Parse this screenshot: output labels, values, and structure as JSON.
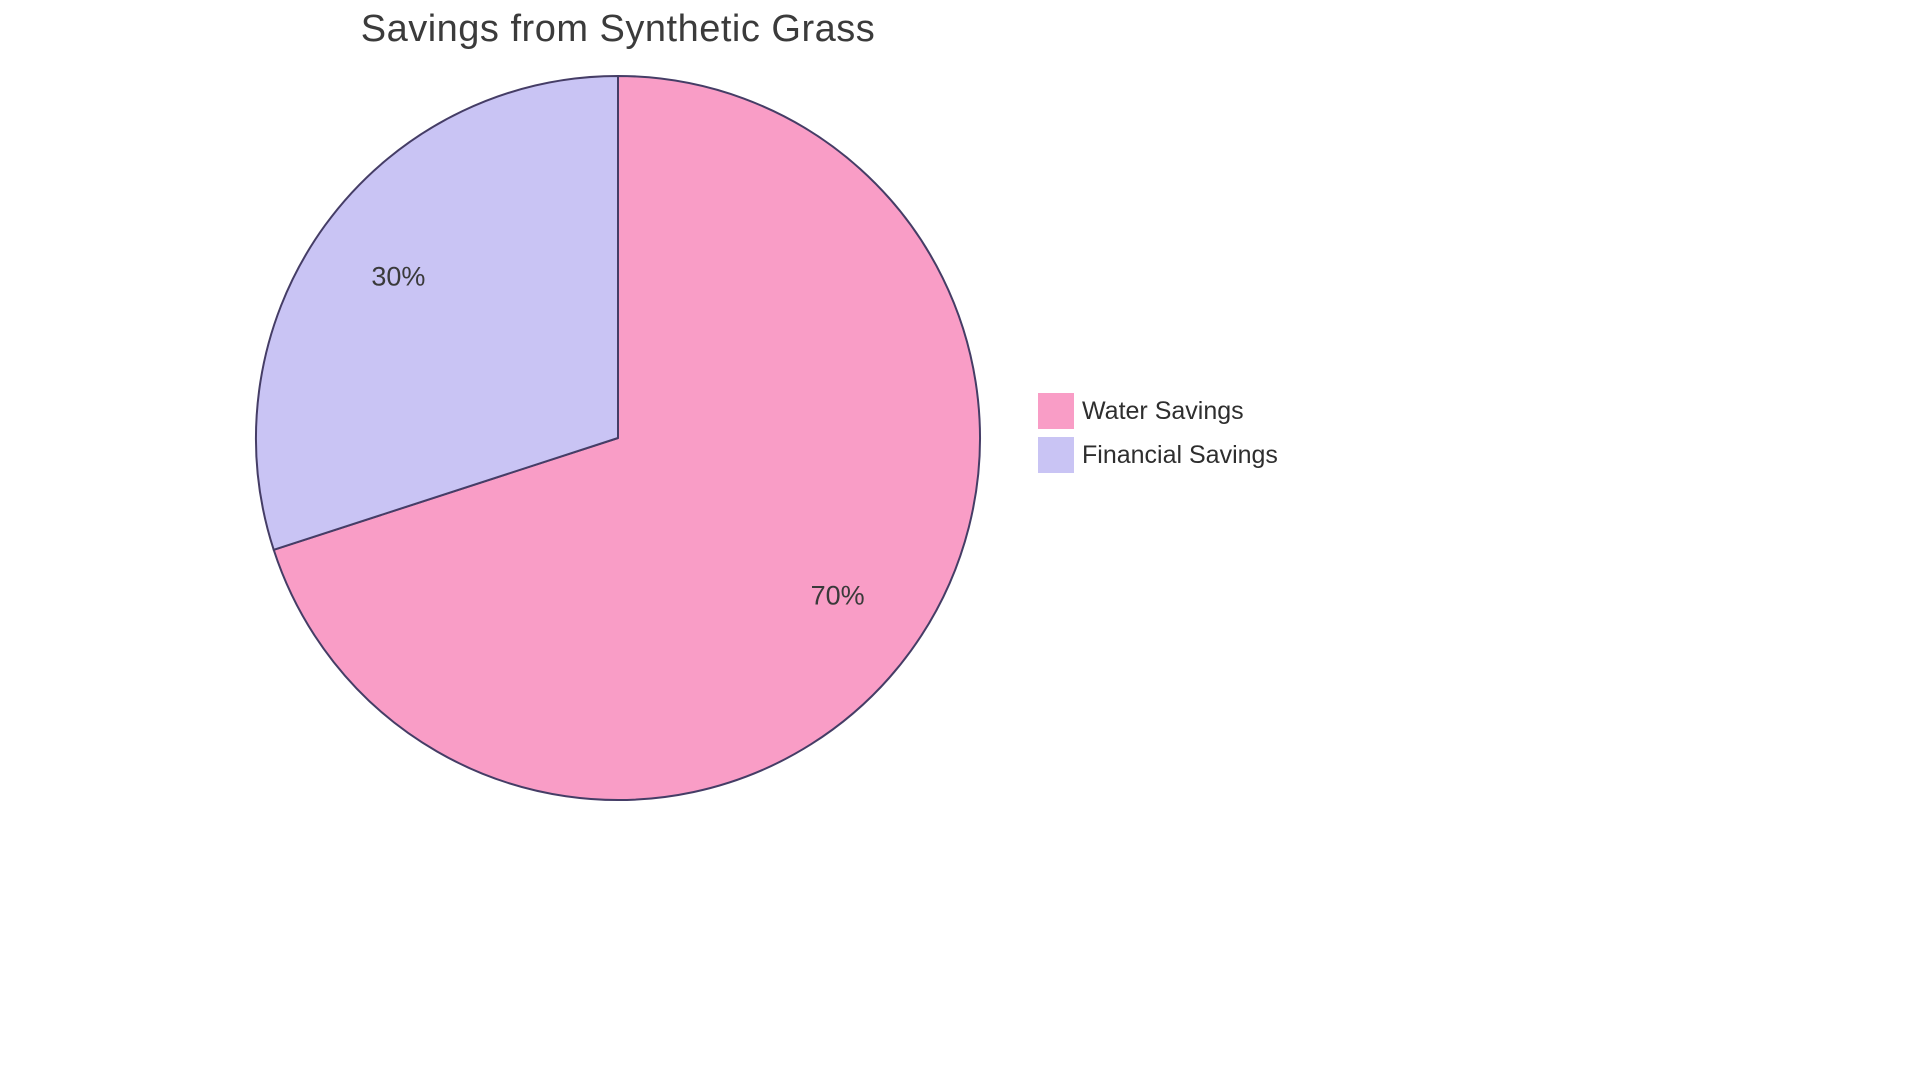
{
  "title": "Savings from Synthetic Grass",
  "chart_data": {
    "type": "pie",
    "title": "Savings from Synthetic Grass",
    "labels": [
      "Water Savings",
      "Financial Savings"
    ],
    "values": [
      70,
      30
    ],
    "slice_labels": [
      "70%",
      "30%"
    ],
    "colors": [
      "#F99DC6",
      "#C9C4F4"
    ],
    "stroke_color": "#453D66",
    "label_color": "#3a3a3a",
    "start_angle_deg": -90,
    "direction": "clockwise",
    "legend_position": "right"
  },
  "legend": {
    "items": [
      {
        "label": "Water Savings",
        "color": "#F99DC6"
      },
      {
        "label": "Financial Savings",
        "color": "#C9C4F4"
      }
    ]
  }
}
